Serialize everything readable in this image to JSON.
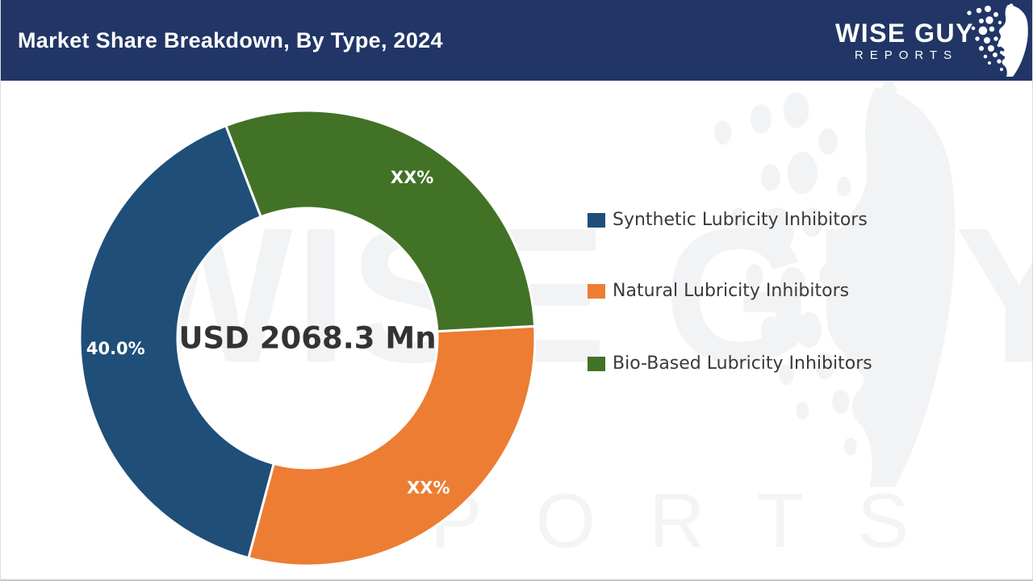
{
  "header": {
    "title": "Market Share Breakdown, By Type, 2024",
    "logo": {
      "line1": "WISE GUY",
      "line2": "REPORTS"
    }
  },
  "watermark": {
    "line1": "WISE GUY",
    "line2": "REPORTS"
  },
  "chart_data": {
    "type": "donut",
    "title": "Market Share Breakdown, By Type, 2024",
    "center_label": "USD 2068.3 Mn",
    "start_angle_deg": 111,
    "direction": "counterclockwise",
    "hole_ratio": 0.57,
    "legend_position": "right",
    "segment_label_color": "#FFFFFF",
    "segments": [
      {
        "label": "Synthetic Lubricity Inhibitors",
        "value_pct": 40.0,
        "display_pct": "40.0%",
        "color": "#1F4F78"
      },
      {
        "label": "Natural Lubricity Inhibitors",
        "value_pct": 30.0,
        "display_pct": "XX%",
        "color": "#EC7D33"
      },
      {
        "label": "Bio-Based Lubricity Inhibitors",
        "value_pct": 30.0,
        "display_pct": "XX%",
        "color": "#427226"
      }
    ]
  },
  "colors": {
    "header_bg": "#213666",
    "center_text": "#333333",
    "legend_text": "#3A3A3A",
    "watermark": "#F2F3F5"
  }
}
